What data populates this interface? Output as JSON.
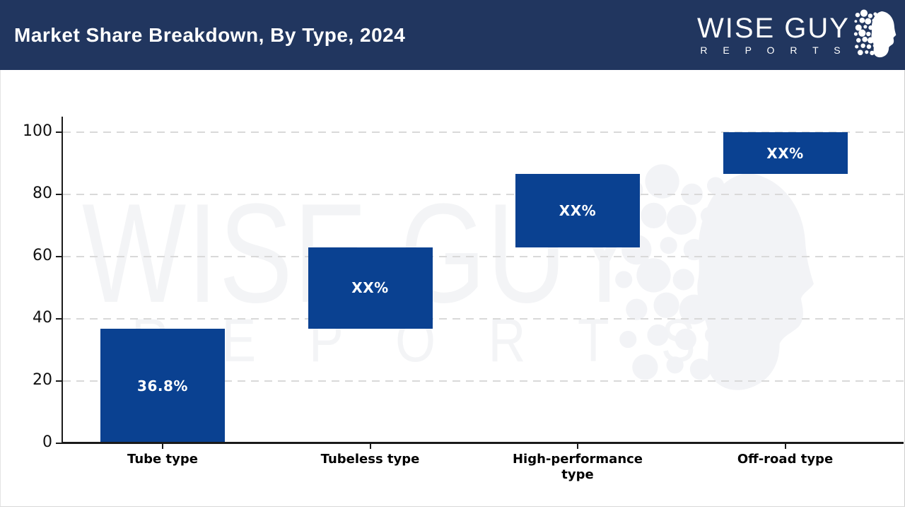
{
  "header": {
    "title": "Market Share Breakdown, By Type, 2024",
    "logo": {
      "line1": "WISE GUY",
      "line2": "R E P O R T S"
    }
  },
  "watermark": {
    "line1": "WISE GUY",
    "line2": "R E P O R T S"
  },
  "chart_data": {
    "type": "bar",
    "subtype": "floating-waterfall",
    "title": "Market Share Breakdown, By Type, 2024",
    "categories": [
      "Tube type",
      "Tubeless type",
      "High-performance type",
      "Off-road type"
    ],
    "segments": [
      {
        "category": "Tube type",
        "start": 0,
        "end": 36.8,
        "label": "36.8%"
      },
      {
        "category": "Tubeless type",
        "start": 36.8,
        "end": 63,
        "label": "XX%"
      },
      {
        "category": "High-performance type",
        "start": 63,
        "end": 86.5,
        "label": "XX%"
      },
      {
        "category": "Off-road type",
        "start": 86.5,
        "end": 100,
        "label": "XX%"
      }
    ],
    "ylim": [
      0,
      100
    ],
    "yticks": [
      0,
      20,
      40,
      60,
      80,
      100
    ],
    "xlabel": "",
    "ylabel": "",
    "grid": "horizontal-dashed",
    "legend": "none",
    "bar_color": "#0a4191",
    "bar_label_color": "#ffffff"
  },
  "colors": {
    "header_bg": "#21365f",
    "bar": "#0a4191",
    "grid": "#d9d9d9",
    "axis": "#1a1a1a",
    "watermark": "#f3f4f6"
  }
}
